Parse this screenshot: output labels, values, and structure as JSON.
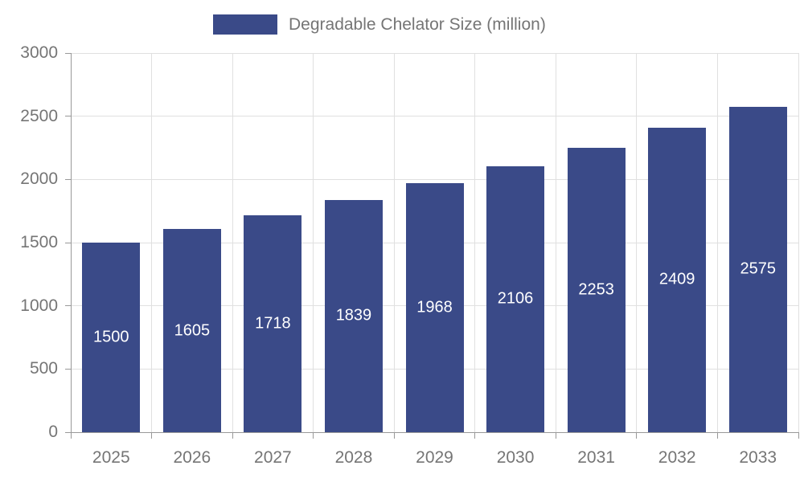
{
  "legend": {
    "label": "Degradable Chelator Size (million)"
  },
  "chart_data": {
    "type": "bar",
    "title": "Degradable Chelator Size (million)",
    "categories": [
      "2025",
      "2026",
      "2027",
      "2028",
      "2029",
      "2030",
      "2031",
      "2032",
      "2033"
    ],
    "values": [
      1500,
      1605,
      1718,
      1839,
      1968,
      2106,
      2253,
      2409,
      2575
    ],
    "xlabel": "",
    "ylabel": "",
    "ylim": [
      0,
      3000
    ],
    "yticks": [
      0,
      500,
      1000,
      1500,
      2000,
      2500,
      3000
    ],
    "grid": true,
    "legend_position": "top",
    "value_labels_inside_bars": true,
    "colors": {
      "bar": "#3A4A88",
      "value_label": "#ffffff",
      "axis_text": "#757575",
      "legend_text": "#757575",
      "gridline": "#e0e0e0",
      "axis_line": "#999999"
    }
  }
}
